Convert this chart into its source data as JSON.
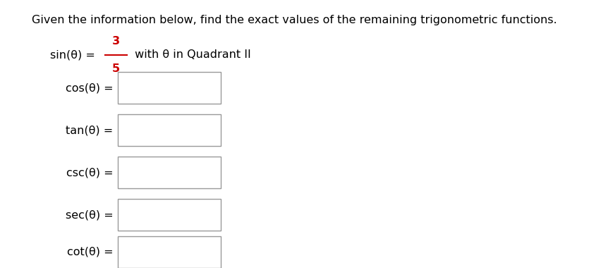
{
  "title": "Given the information below, find the exact values of the remaining trigonometric functions.",
  "title_color": "#000000",
  "title_fontsize": 11.5,
  "background_color": "#ffffff",
  "given_sin_label": "sin(θ) = ",
  "given_numerator": "3",
  "given_denominator": "5",
  "given_fraction_color": "#cc0000",
  "given_extra": " with θ in Quadrant II",
  "functions": [
    "cos(θ)",
    "tan(θ)",
    "csc(θ)",
    "sec(θ)",
    "cot(θ)"
  ],
  "label_color": "#000000",
  "label_fontsize": 11.5,
  "box_edge_color": "#999999",
  "box_face_color": "#ffffff",
  "fig_width": 8.35,
  "fig_height": 3.8,
  "dpi": 100
}
